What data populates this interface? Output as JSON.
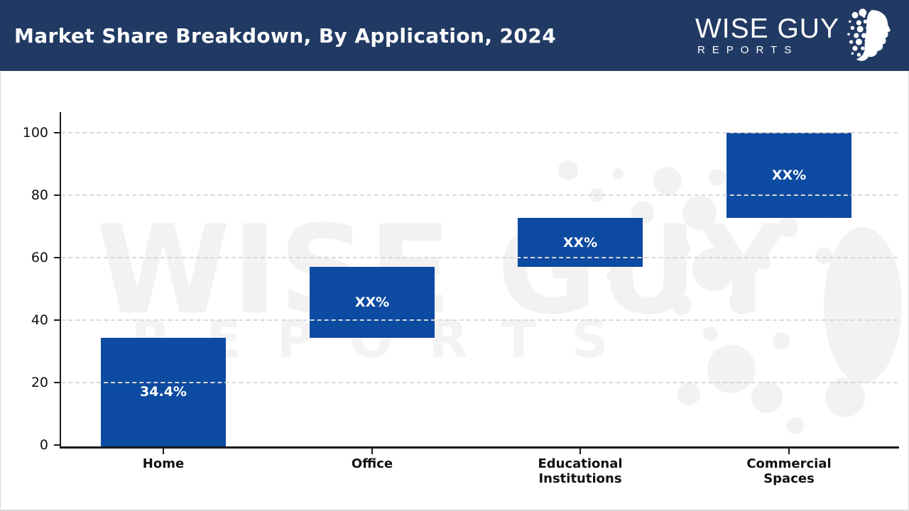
{
  "header": {
    "title": "Market Share Breakdown, By Application, 2024",
    "bg_color": "#213a64",
    "logo": {
      "line1": "WISE GUY",
      "line2": "REPORTS"
    }
  },
  "watermark": {
    "line1": "WISE GUY",
    "line2": "REPORTS"
  },
  "chart_data": {
    "type": "bar",
    "variant": "waterfall",
    "title": "Market Share Breakdown, By Application, 2024",
    "categories": [
      "Home",
      "Office",
      "Educational Institutions",
      "Commercial Spaces"
    ],
    "segments": [
      {
        "category": "Home",
        "start": 0,
        "end": 34.4,
        "value": 34.4,
        "label": "34.4%"
      },
      {
        "category": "Office",
        "start": 34.4,
        "end": 57.0,
        "value": 22.6,
        "label": "XX%"
      },
      {
        "category": "Educational Institutions",
        "start": 57.0,
        "end": 72.7,
        "value": 15.7,
        "label": "XX%"
      },
      {
        "category": "Commercial Spaces",
        "start": 72.7,
        "end": 100,
        "value": 27.3,
        "label": "XX%"
      }
    ],
    "xlabel": "",
    "ylabel": "",
    "ylim": [
      0,
      100
    ],
    "yticks": [
      0,
      20,
      40,
      60,
      80,
      100
    ],
    "grid": "horizontal dashed, drawn over bars",
    "legend": "none",
    "bar_color": "#0d4aa1",
    "bar_label_color": "#ffffff",
    "axis_color": "#1a1a1a",
    "gridline_color": "#d8d8d8"
  }
}
